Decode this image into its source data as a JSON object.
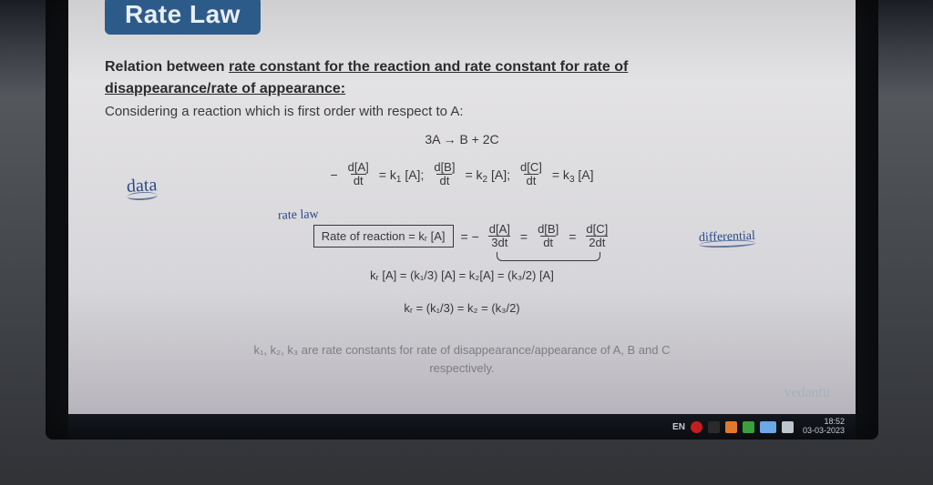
{
  "badge": "Rate Law",
  "heading": {
    "part1": "Relation between ",
    "underlined1": "rate constant for the reaction and rate constant for rate of",
    "underlined2": "disappearance/rate of appearance:"
  },
  "subheading": "Considering a reaction which is first order with respect to A:",
  "reaction_eq": "3A → B + 2C",
  "line1_parts": {
    "minus": "−",
    "f1_num": "d[A]",
    "f1_den": "dt",
    "eq1": "= k",
    "s1": "1",
    "a1": "[A];",
    "f2_num": "d[B]",
    "f2_den": "dt",
    "eq2": "= k",
    "s2": "2",
    "a2": "[A];",
    "f3_num": "d[C]",
    "f3_den": "dt",
    "eq3": "= k",
    "s3": "3",
    "a3": "[A]"
  },
  "boxed_text": "Rate of reaction = kᵣ [A]",
  "line2_parts": {
    "eqminus": "= −",
    "f1_num": "d[A]",
    "f1_den": "3dt",
    "eq": "=",
    "f2_num": "d[B]",
    "f2_den": "dt",
    "f3_num": "d[C]",
    "f3_den": "2dt"
  },
  "line3": "kᵣ [A] = (k₁/3) [A] = k₂[A] = (k₃/2) [A]",
  "line4": "kᵣ = (k₁/3) = k₂ = (k₃/2)",
  "footnote_line1": "k₁, k₂, k₃ are rate constants for rate of disappearance/appearance of A, B and C",
  "footnote_line2": "respectively.",
  "handwriting": {
    "data": "data",
    "ratelaw": "rate law",
    "diff": "differential"
  },
  "watermark": "vedantu",
  "taskbar": {
    "time": "18:52",
    "date": "03-03-2023",
    "icons": {
      "lang": "EN",
      "c_wifi": "#3a8de0",
      "c_vol": "#bfc5cc",
      "c_orange": "#e07a2a",
      "c_green": "#3aa03a",
      "c_apple": "#c61e1e",
      "c_black": "#2a2a2a"
    }
  }
}
